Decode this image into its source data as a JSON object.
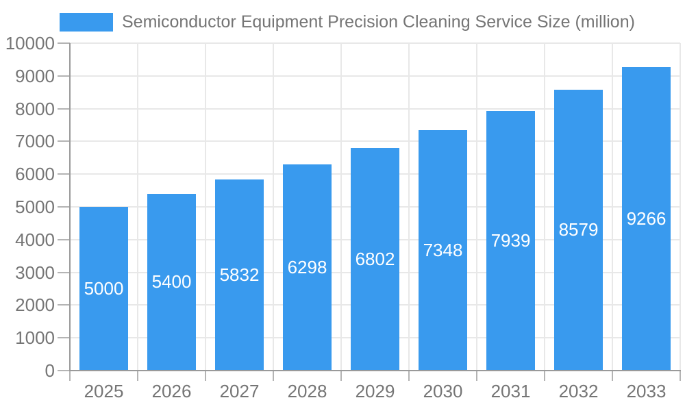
{
  "legend": {
    "items": [
      {
        "label": "Semiconductor Equipment Precision Cleaning Service Size (million)",
        "swatch_color": "#399aee"
      }
    ]
  },
  "colors": {
    "bar": "#399aee",
    "bar_label_text": "#ffffff",
    "axis_line": "#9a9a9a",
    "tick_mark": "#b4b4b4",
    "grid_line": "#e8e8e8",
    "tick_label_text": "#757575",
    "legend_text": "#757575",
    "background": "#ffffff"
  },
  "chart_data": {
    "type": "bar",
    "title": "Semiconductor Equipment Precision Cleaning Service Size (million)",
    "categories": [
      "2025",
      "2026",
      "2027",
      "2028",
      "2029",
      "2030",
      "2031",
      "2032",
      "2033"
    ],
    "values": [
      5000,
      5400,
      5832,
      6298,
      6802,
      7348,
      7939,
      8579,
      9266
    ],
    "bar_value_labels": [
      "5000",
      "5400",
      "5832",
      "6298",
      "6802",
      "7348",
      "7939",
      "8579",
      "9266"
    ],
    "xlabel": "",
    "ylabel": "",
    "ylim": [
      0,
      10000
    ],
    "ytick_step": 1000,
    "yticks": [
      0,
      1000,
      2000,
      3000,
      4000,
      5000,
      6000,
      7000,
      8000,
      9000,
      10000
    ],
    "grid": true,
    "legend_position": "top-left",
    "bar_label_position": "inside-center"
  }
}
